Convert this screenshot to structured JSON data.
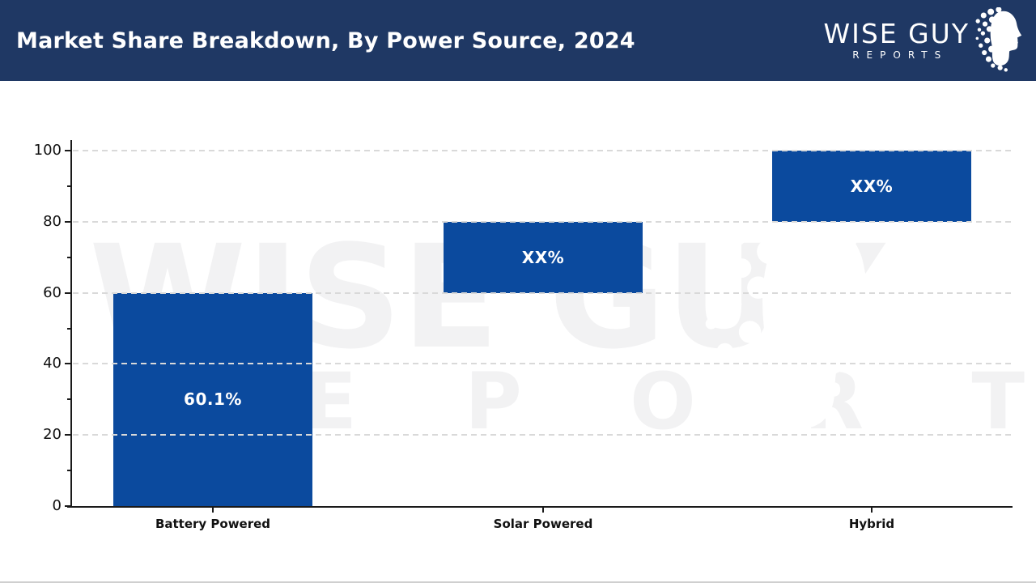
{
  "header": {
    "title": "Market Share Breakdown, By Power Source, 2024",
    "background_color": "#1f3864",
    "logo": {
      "line1": "WISE GUY",
      "line2": "REPORTS",
      "icon": "dotted-head-profile-icon"
    }
  },
  "watermark": {
    "line1": "WISE GUY",
    "line2": "R E P O R T S",
    "icon": "dotted-head-profile-icon",
    "color": "#f2f2f3"
  },
  "chart_data": {
    "type": "bar",
    "variant": "floating-range bars (waterfall style)",
    "title": "Market Share Breakdown, By Power Source, 2024",
    "categories": [
      "Battery Powered",
      "Solar Powered",
      "Hybrid"
    ],
    "segments": [
      {
        "category": "Battery Powered",
        "start": 0,
        "end": 60,
        "label": "60.1%"
      },
      {
        "category": "Solar Powered",
        "start": 60,
        "end": 80,
        "label": "XX%"
      },
      {
        "category": "Hybrid",
        "start": 80,
        "end": 100,
        "label": "XX%"
      }
    ],
    "xlabel": "",
    "ylabel": "",
    "ylim": [
      0,
      100
    ],
    "yticks": [
      0,
      20,
      40,
      60,
      80,
      100
    ],
    "minor_yticks": [
      10,
      30,
      50,
      70,
      90
    ],
    "grid": "horizontal dashed, drawn over bars",
    "legend": "none",
    "bar_color": "#0b4a9e",
    "bar_label_color": "#ffffff",
    "axis_color": "#1a1a1a",
    "gridline_color": "#d9d9d9"
  },
  "footer": {
    "bottom_rule_color": "#cfcfcf"
  }
}
